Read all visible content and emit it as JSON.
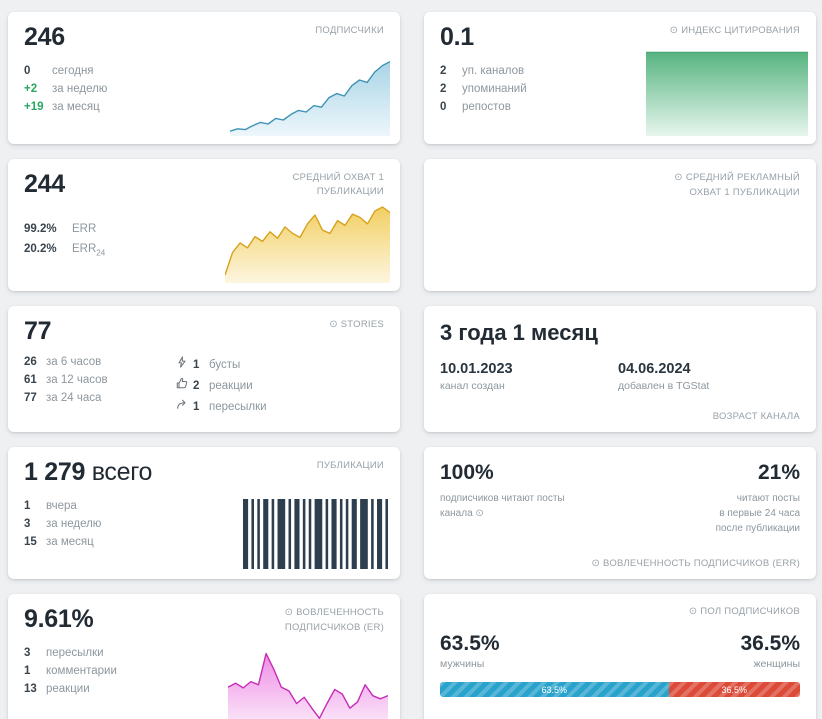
{
  "palette": {
    "page_background": "#eef0f2",
    "card_background": "#ffffff",
    "heading_text": "#222b33",
    "label_gray": "#97a1a8",
    "value_dark": "#39444d",
    "positive_green": "#27a862",
    "chart_blue_line": "#3e93b5",
    "chart_green_fill": "#57b480",
    "chart_yellow_line": "#d7a21c",
    "chart_magenta_line": "#c62bb7",
    "barcode_navy": "#2d3e4f",
    "gender_male_blue": "#29a3cc",
    "gender_female_red": "#dc4a38"
  },
  "cards": {
    "subscribers": {
      "value": "246",
      "label": "ПОДПИСЧИКИ",
      "stats": [
        {
          "value": "0",
          "label": "сегодня"
        },
        {
          "value": "+2",
          "label": "за неделю"
        },
        {
          "value": "+19",
          "label": "за месяц"
        }
      ]
    },
    "citation_index": {
      "value": "0.1",
      "label": "ИНДЕКС ЦИТИРОВАНИЯ",
      "stats": [
        {
          "value": "2",
          "label": "уп. каналов"
        },
        {
          "value": "2",
          "label": "упоминаний"
        },
        {
          "value": "0",
          "label": "репостов"
        }
      ]
    },
    "avg_reach": {
      "value": "244",
      "label": "СРЕДНИЙ ОХВАТ 1 ПУБЛИКАЦИИ",
      "stats": [
        {
          "value": "99.2%",
          "label": "ERR",
          "sub": ""
        },
        {
          "value": "20.2%",
          "label": "ERR",
          "sub": "24"
        }
      ]
    },
    "avg_ad_reach": {
      "label": "СРЕДНИЙ РЕКЛАМНЫЙ ОХВАТ 1 ПУБЛИКАЦИИ"
    },
    "stories": {
      "value": "77",
      "label": "STORIES",
      "time_stats": [
        {
          "value": "26",
          "label": "за 6 часов"
        },
        {
          "value": "61",
          "label": "за 12 часов"
        },
        {
          "value": "77",
          "label": "за 24 часа"
        }
      ],
      "action_stats": [
        {
          "icon": "boost-icon",
          "value": "1",
          "label": "бусты"
        },
        {
          "icon": "like-icon",
          "value": "2",
          "label": "реакции"
        },
        {
          "icon": "forward-icon",
          "value": "1",
          "label": "пересылки"
        }
      ]
    },
    "channel_age": {
      "value": "3 года 1 месяц",
      "created_date": "10.01.2023",
      "created_label": "канал создан",
      "added_date": "04.06.2024",
      "added_label": "добавлен в TGStat",
      "label": "ВОЗРАСТ КАНАЛА"
    },
    "publications": {
      "value": "1 279",
      "value_suffix": "всего",
      "label": "ПУБЛИКАЦИИ",
      "stats": [
        {
          "value": "1",
          "label": "вчера"
        },
        {
          "value": "3",
          "label": "за неделю"
        },
        {
          "value": "15",
          "label": "за месяц"
        }
      ]
    },
    "engagement_err": {
      "label": "ВОВЛЕЧЕННОСТЬ ПОДПИСЧИКОВ (ERR)",
      "left_value": "100%",
      "left_caption": "подписчиков читают посты\nканала",
      "right_value": "21%",
      "right_caption": "читают посты\nв первые 24 часа\nпосле публикации"
    },
    "engagement_er": {
      "value": "9.61%",
      "label": "ВОВЛЕЧЕННОСТЬ ПОДПИСЧИКОВ (ER)",
      "stats": [
        {
          "value": "3",
          "label": "пересылки"
        },
        {
          "value": "1",
          "label": "комментарии"
        },
        {
          "value": "13",
          "label": "реакции"
        }
      ]
    },
    "gender": {
      "label": "ПОЛ ПОДПИСЧИКОВ",
      "male_value": "63.5%",
      "male_label": "мужчины",
      "female_value": "36.5%",
      "female_label": "женщины"
    }
  },
  "chart_data": [
    {
      "id": "subscribers-trend",
      "type": "area",
      "title": "Подписчики — динамика роста (спарклайн, рост от ~низкого значения к 246)",
      "values": [
        0.06,
        0.09,
        0.08,
        0.13,
        0.17,
        0.15,
        0.22,
        0.2,
        0.27,
        0.32,
        0.3,
        0.38,
        0.36,
        0.48,
        0.53,
        0.5,
        0.63,
        0.7,
        0.67,
        0.8,
        0.88,
        0.93
      ],
      "line_color": "#3e93b5",
      "fill_top": "#a9d4e6",
      "fill_bottom": "#edf7fb"
    },
    {
      "id": "citation-trend",
      "type": "area",
      "title": "Индекс цитирования — постоянный уровень",
      "values": [
        0.95,
        0.95,
        0.95,
        0.95,
        0.95,
        0.95,
        0.95,
        0.95,
        0.95,
        0.95
      ],
      "line_color": "#49a974",
      "fill_top": "#57b480",
      "fill_bottom": "#e7f6ee"
    },
    {
      "id": "reach-trend",
      "type": "area",
      "title": "Средний охват 1 публикации — колеблющийся рост",
      "values": [
        0.1,
        0.38,
        0.5,
        0.44,
        0.58,
        0.52,
        0.64,
        0.56,
        0.7,
        0.62,
        0.57,
        0.74,
        0.85,
        0.66,
        0.62,
        0.78,
        0.72,
        0.86,
        0.82,
        0.74,
        0.9,
        0.95,
        0.88
      ],
      "line_color": "#d7a21c",
      "fill_top": "#f2cf63",
      "fill_bottom": "#fdf6df"
    },
    {
      "id": "publications-bars",
      "type": "barcode",
      "title": "Публикации — штрих-код активности (вертикальные полосы полной высоты)",
      "bars": [
        2,
        1,
        1,
        2,
        1,
        3,
        1,
        2,
        1,
        1,
        3,
        1,
        2,
        1,
        1,
        2,
        3,
        1,
        2,
        1
      ],
      "color": "#2d3e4f"
    },
    {
      "id": "er-trend",
      "type": "area",
      "title": "Вовлеченность подписчиков (ER) — пик и спад",
      "values": [
        0.55,
        0.6,
        0.54,
        0.62,
        0.58,
        0.98,
        0.78,
        0.55,
        0.5,
        0.34,
        0.42,
        0.28,
        0.15,
        0.34,
        0.52,
        0.46,
        0.28,
        0.36,
        0.58,
        0.44,
        0.4,
        0.44
      ],
      "line_color": "#c62bb7",
      "fill_top": "#ee8de5",
      "fill_bottom": "#fceefb"
    },
    {
      "id": "gender-bar",
      "type": "bar",
      "title": "Пол подписчиков",
      "segments": [
        {
          "name": "мужчины",
          "label": "63.5%",
          "value": 63.5,
          "color": "#29a3cc"
        },
        {
          "name": "женщины",
          "label": "36.5%",
          "value": 36.5,
          "color": "#dc4a38"
        }
      ]
    }
  ]
}
